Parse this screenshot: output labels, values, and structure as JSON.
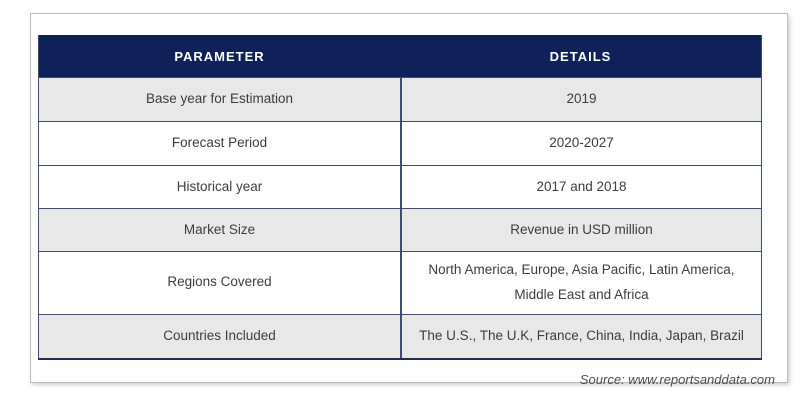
{
  "table": {
    "headers": {
      "parameter": "PARAMETER",
      "details": "DETAILS"
    },
    "rows": [
      {
        "parameter": "Base year for Estimation",
        "details": "2019"
      },
      {
        "parameter": "Forecast Period",
        "details": "2020-2027"
      },
      {
        "parameter": "Historical year",
        "details": "2017 and 2018"
      },
      {
        "parameter": "Market Size",
        "details": "Revenue in USD million"
      },
      {
        "parameter": "Regions Covered",
        "details": "North America, Europe, Asia Pacific, Latin America, Middle East and Africa"
      },
      {
        "parameter": "Countries Included",
        "details": "The U.S., The  U.K, France, China, India, Japan, Brazil"
      }
    ]
  },
  "source": "Source: www.reportsanddata.com",
  "colors": {
    "header_bg": "#0e2259",
    "header_text": "#ffffff",
    "row_shaded": "#e8e8e8",
    "row_white": "#ffffff",
    "border_dark": "#3f4c6e"
  }
}
